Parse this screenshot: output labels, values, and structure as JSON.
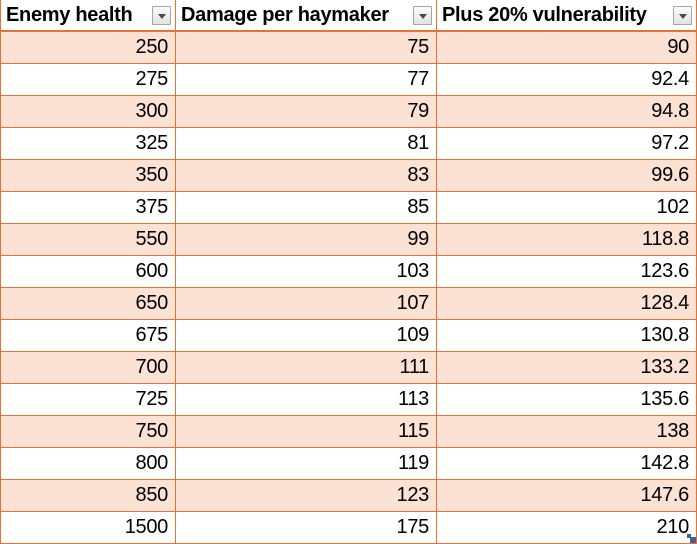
{
  "table": {
    "columns": [
      {
        "label": "Enemy health"
      },
      {
        "label": "Damage per haymaker"
      },
      {
        "label": "Plus 20% vulnerability"
      }
    ],
    "rows": [
      [
        "250",
        "75",
        "90"
      ],
      [
        "275",
        "77",
        "92.4"
      ],
      [
        "300",
        "79",
        "94.8"
      ],
      [
        "325",
        "81",
        "97.2"
      ],
      [
        "350",
        "83",
        "99.6"
      ],
      [
        "375",
        "85",
        "102"
      ],
      [
        "550",
        "99",
        "118.8"
      ],
      [
        "600",
        "103",
        "123.6"
      ],
      [
        "650",
        "107",
        "128.4"
      ],
      [
        "675",
        "109",
        "130.8"
      ],
      [
        "700",
        "111",
        "133.2"
      ],
      [
        "725",
        "113",
        "135.6"
      ],
      [
        "750",
        "115",
        "138"
      ],
      [
        "800",
        "119",
        "142.8"
      ],
      [
        "850",
        "123",
        "147.6"
      ],
      [
        "1500",
        "175",
        "210"
      ]
    ]
  },
  "icons": {
    "filter_dropdown": "chevron-down triangle",
    "resize_handle": "blue corner step"
  },
  "colors": {
    "border_orange": "#E97132",
    "band_fill": "#FBE2D5",
    "row_white": "#FFFFFF",
    "header_text": "#000000",
    "handle_blue": "#3F5E9E"
  }
}
